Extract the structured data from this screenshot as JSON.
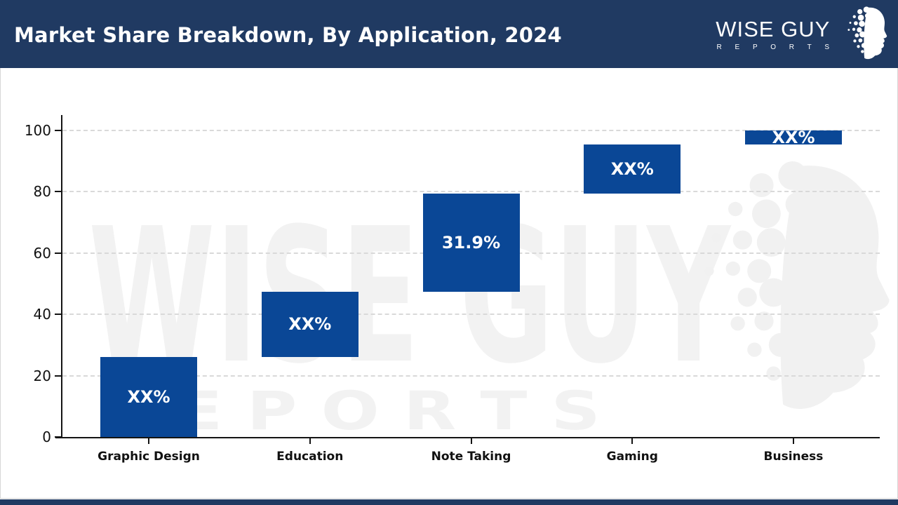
{
  "header": {
    "title": "Market Share Breakdown, By Application, 2024",
    "logo": {
      "line1": "WISE GUY",
      "line2": "R E P O R T S"
    }
  },
  "watermark": {
    "line1": "WISE GUY",
    "line2": "R E P O R T S"
  },
  "chart_data": {
    "type": "bar",
    "subtype": "waterfall",
    "title": "Market Share Breakdown, By Application, 2024",
    "categories": [
      "Graphic Design",
      "Education",
      "Note Taking",
      "Gaming",
      "Business"
    ],
    "segments": [
      {
        "category": "Graphic Design",
        "start": 0,
        "end": 26.1,
        "label": "XX%"
      },
      {
        "category": "Education",
        "start": 26.1,
        "end": 47.4,
        "label": "XX%"
      },
      {
        "category": "Note Taking",
        "start": 47.4,
        "end": 79.3,
        "label": "31.9%"
      },
      {
        "category": "Gaming",
        "start": 79.3,
        "end": 95.4,
        "label": "XX%"
      },
      {
        "category": "Business",
        "start": 95.4,
        "end": 100.0,
        "label": "XX%"
      }
    ],
    "y_ticks": [
      0,
      20,
      40,
      60,
      80,
      100
    ],
    "ylim": [
      0,
      105
    ],
    "xlabel": "",
    "ylabel": "",
    "grid": "horizontal-dashed",
    "legend": "none"
  },
  "colors": {
    "header_bg": "#203a62",
    "footer_bg": "#203a62",
    "bar": "#0a4796",
    "bar_label": "#ffffff",
    "grid": "#d9d9d9",
    "axis": "#141414",
    "tick_text": "#111111",
    "watermark": "#f2f2f2"
  }
}
